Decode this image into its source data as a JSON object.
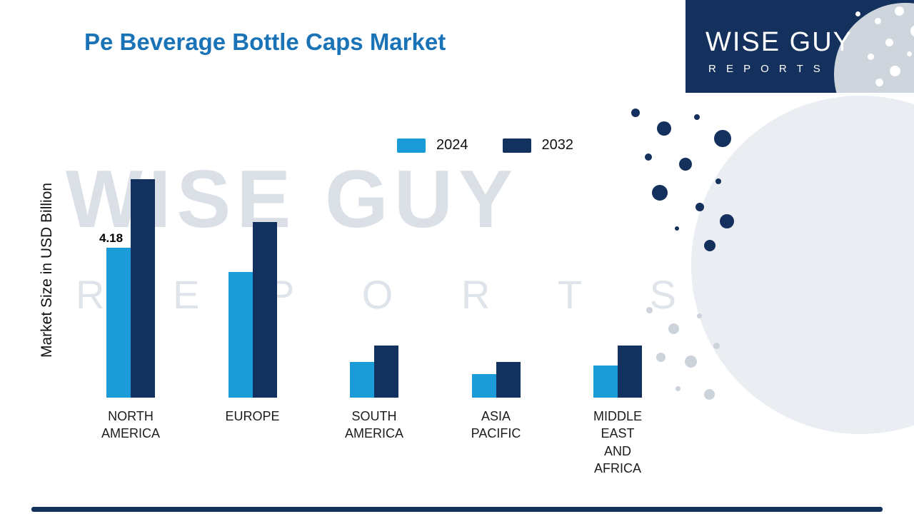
{
  "page_title": "Pe Beverage Bottle Caps Market",
  "logo": {
    "name_line": "WISE GUY",
    "reports_line": "R E P O R T S"
  },
  "watermark": {
    "name_line": "WISE GUY",
    "reports_line": "R E P O R T S"
  },
  "colors": {
    "title_blue": "#1a73b7",
    "navy": "#14305c",
    "series_2024": "#1b9bd7",
    "series_2032": "#12315f",
    "watermark_gray": "#dbe0e7"
  },
  "chart_data": {
    "type": "bar",
    "title": "Pe Beverage Bottle Caps Market",
    "ylabel": "Market Size in USD Billion",
    "xlabel": "",
    "ylim": [
      0,
      6.5
    ],
    "grid": false,
    "legend_position": "top",
    "categories": [
      "NORTH AMERICA",
      "EUROPE",
      "SOUTH AMERICA",
      "ASIA PACIFIC",
      "MIDDLE EAST AND AFRICA"
    ],
    "category_label_lines": [
      [
        "NORTH",
        "AMERICA"
      ],
      [
        "EUROPE"
      ],
      [
        "SOUTH",
        "AMERICA"
      ],
      [
        "ASIA",
        "PACIFIC"
      ],
      [
        "MIDDLE",
        "EAST",
        "AND",
        "AFRICA"
      ]
    ],
    "series": [
      {
        "name": "2024",
        "color": "#1b9bd7",
        "values": [
          4.18,
          3.5,
          1.0,
          0.65,
          0.9
        ]
      },
      {
        "name": "2032",
        "color": "#12315f",
        "values": [
          6.1,
          4.9,
          1.45,
          1.0,
          1.45
        ]
      }
    ],
    "data_labels": [
      {
        "series_index": 0,
        "category_index": 0,
        "text": "4.18"
      }
    ]
  }
}
